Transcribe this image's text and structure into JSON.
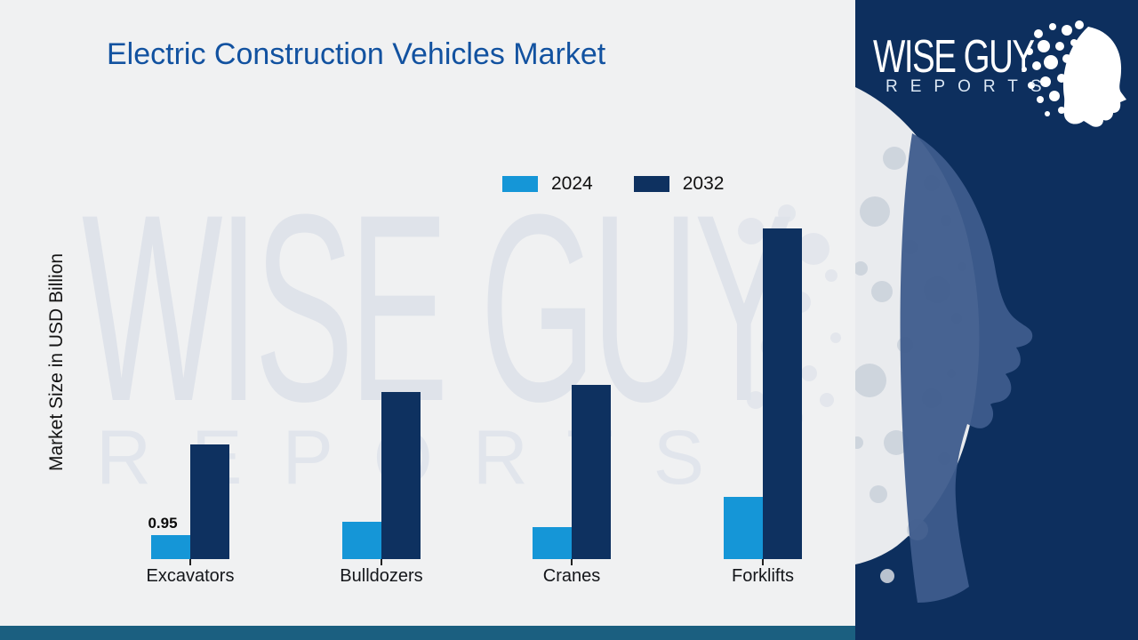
{
  "page": {
    "background": "#f0f1f2",
    "accent_bar_color": "#1b5f80"
  },
  "header": {
    "title": "Electric Construction Vehicles Market",
    "title_color": "#1252a0"
  },
  "watermark": {
    "line1": "WISE GUY",
    "line2": "REPORTS"
  },
  "brand": {
    "wordmark": "WISE GUY",
    "reports_label": "REPORTS",
    "panel_color": "#0d2f5e",
    "head_blob_color": "#e9ebee",
    "head_dot_color": "#ccd3dc",
    "face_silhouette_color": "#3e5c8c"
  },
  "chart_data": {
    "type": "bar",
    "title": "Electric Construction Vehicles Market",
    "xlabel": "",
    "ylabel": "Market Size in USD Billion",
    "categories": [
      "Excavators",
      "Bulldozers",
      "Cranes",
      "Forklifts"
    ],
    "series": [
      {
        "name": "2024",
        "color": "#1596d7",
        "values": [
          0.95,
          1.5,
          1.3,
          2.5
        ]
      },
      {
        "name": "2032",
        "color": "#0e3160",
        "values": [
          4.6,
          6.7,
          7.0,
          13.3
        ]
      }
    ],
    "annotations": [
      {
        "series": "2024",
        "category": "Excavators",
        "label": "0.95"
      }
    ],
    "legend_position": "top-center",
    "grid": false,
    "y_axis_tick_labels_visible": false,
    "baseline_value": 0
  }
}
